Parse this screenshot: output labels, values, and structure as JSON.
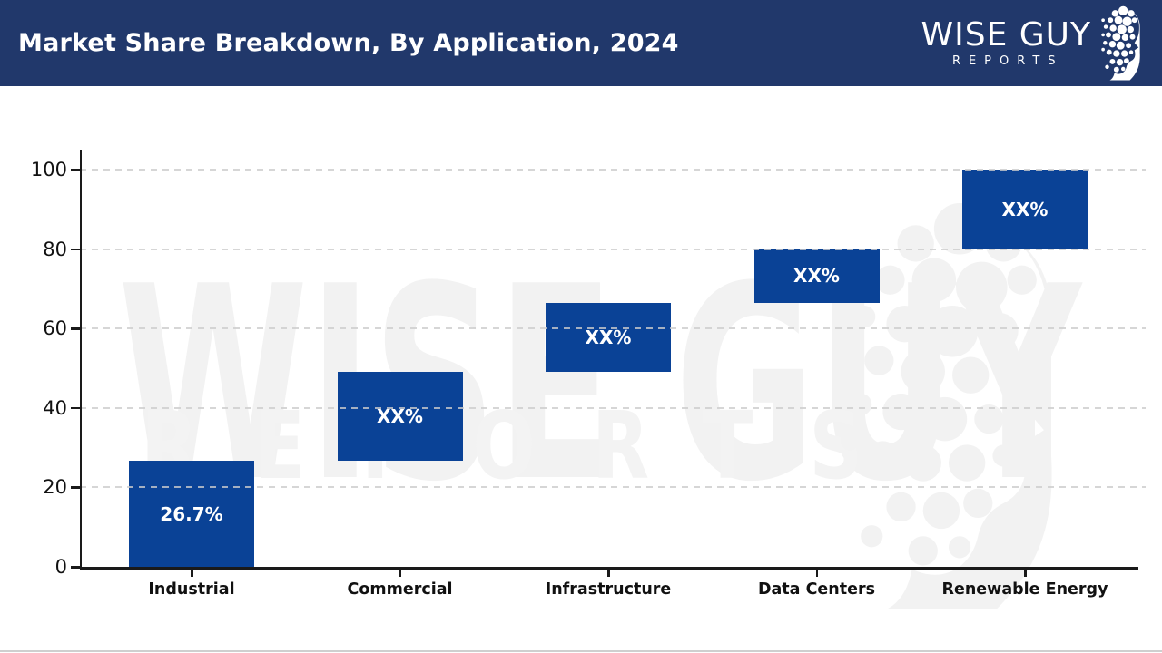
{
  "header": {
    "title": "Market Share Breakdown, By Application, 2024",
    "logo": {
      "line1": "WISE GUY",
      "line2": "REPORTS"
    }
  },
  "watermark": {
    "line1": "WISE GUY",
    "line2": "REPORTS"
  },
  "colors": {
    "header_bg": "#21386b",
    "bar": "#0a4296",
    "grid": "#cccccc",
    "axis": "#1a1a1a",
    "bar_label": "#ffffff",
    "watermark": "#f2f2f2",
    "logo": "#ffffff"
  },
  "chart_data": {
    "type": "bar",
    "subtype": "waterfall",
    "title": "Market Share Breakdown, By Application, 2024",
    "categories": [
      "Industrial",
      "Commercial",
      "Infrastructure",
      "Data Centers",
      "Renewable Energy"
    ],
    "segments": [
      {
        "category": "Industrial",
        "start": 0,
        "end": 26.7,
        "label": "26.7%"
      },
      {
        "category": "Commercial",
        "start": 26.7,
        "end": 49.0,
        "label": "XX%"
      },
      {
        "category": "Infrastructure",
        "start": 49.0,
        "end": 66.5,
        "label": "XX%"
      },
      {
        "category": "Data Centers",
        "start": 66.5,
        "end": 80.0,
        "label": "XX%"
      },
      {
        "category": "Renewable Energy",
        "start": 80.0,
        "end": 100.0,
        "label": "XX%"
      }
    ],
    "xlabel": "",
    "ylabel": "",
    "ylim": [
      0,
      100
    ],
    "yticks": [
      0,
      20,
      40,
      60,
      80,
      100
    ],
    "grid": "horizontal dashed",
    "legend": "none"
  }
}
